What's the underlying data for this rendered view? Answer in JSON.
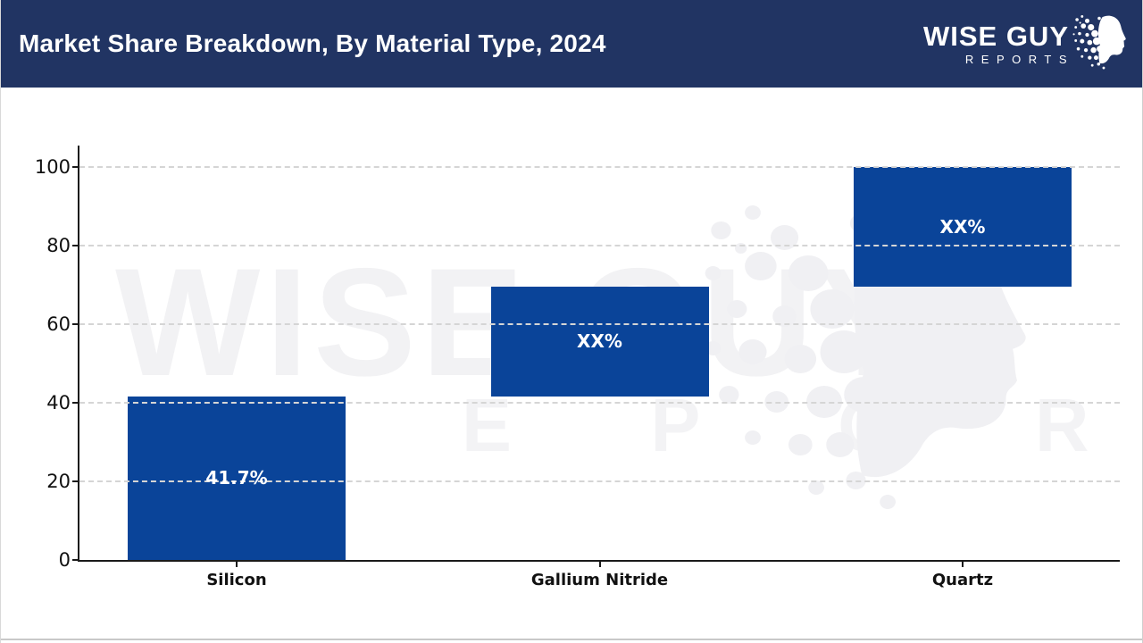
{
  "header": {
    "title": "Market Share Breakdown, By Material Type, 2024",
    "bg_color": "#213463",
    "logo": {
      "line1": "WISE GUY",
      "line2": "REPORTS"
    }
  },
  "watermark": {
    "line1": "WISE GUY",
    "line2": "R E P O R T S"
  },
  "chart_data": {
    "type": "bar",
    "subtype": "stacked-breakdown-floating-bars",
    "title": "Market Share Breakdown, By Material Type, 2024",
    "categories": [
      "Silicon",
      "Gallium Nitride",
      "Quartz"
    ],
    "segments": [
      {
        "category": "Silicon",
        "start": 0,
        "end": 41.7,
        "label": "41.7%"
      },
      {
        "category": "Gallium Nitride",
        "start": 41.7,
        "end": 69.5,
        "label": "XX%"
      },
      {
        "category": "Quartz",
        "start": 69.5,
        "end": 100,
        "label": "XX%"
      }
    ],
    "xlabel": "",
    "ylabel": "",
    "ylim": [
      0,
      100
    ],
    "yticks": [
      0,
      20,
      40,
      60,
      80,
      100
    ],
    "grid": "horizontal-dashed, drawn above bars",
    "legend": "none",
    "bar_color": "#0a4499",
    "bar_label_color": "#ffffff",
    "grid_color": "#d5d5d5",
    "axis_color": "#1a1a1a"
  }
}
